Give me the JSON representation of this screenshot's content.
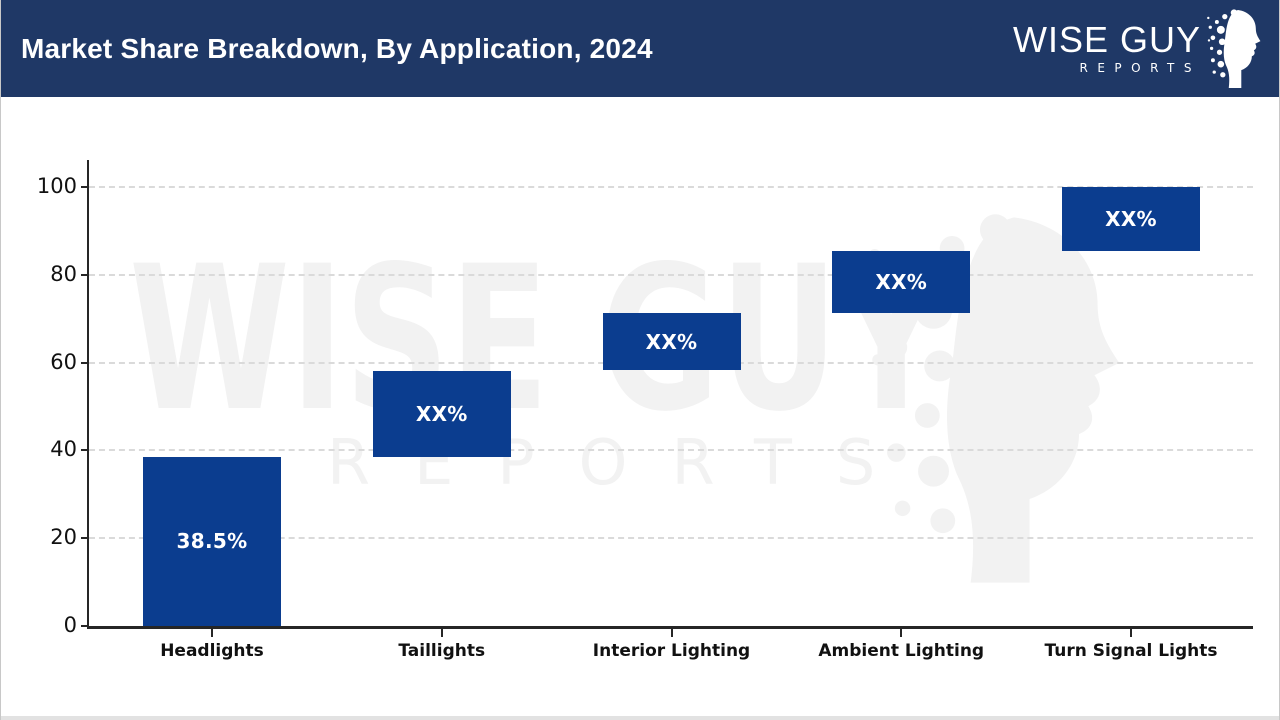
{
  "header": {
    "title": "Market Share Breakdown, By Application, 2024",
    "logo": {
      "line1": "WISE GUY",
      "line2": "REPORTS",
      "icon": "dotted-head-profile-icon"
    }
  },
  "watermark": {
    "line1": "WISE GUY",
    "line2": "REPORTS",
    "icon": "dotted-head-profile-icon"
  },
  "colors": {
    "header_bg": "#1f3866",
    "bar": "#0b3d8f",
    "grid": "#dadada",
    "axis": "#262626",
    "bar_label": "#ffffff",
    "watermark": "#f2f2f2"
  },
  "chart_data": {
    "type": "bar",
    "subtype": "waterfall",
    "title": "Market Share Breakdown, By Application, 2024",
    "categories": [
      "Headlights",
      "Taillights",
      "Interior Lighting",
      "Ambient Lighting",
      "Turn Signal Lights"
    ],
    "series": [
      {
        "name": "Market share (%)",
        "segments": [
          {
            "category": "Headlights",
            "start": 0,
            "end": 38.5,
            "label": "38.5%"
          },
          {
            "category": "Taillights",
            "start": 38.5,
            "end": 58.2,
            "label": "XX%"
          },
          {
            "category": "Interior Lighting",
            "start": 58.2,
            "end": 71.4,
            "label": "XX%"
          },
          {
            "category": "Ambient Lighting",
            "start": 71.4,
            "end": 85.5,
            "label": "XX%"
          },
          {
            "category": "Turn Signal Lights",
            "start": 85.5,
            "end": 100,
            "label": "XX%"
          }
        ]
      }
    ],
    "xlabel": "",
    "ylabel": "",
    "ylim": [
      0,
      100
    ],
    "yticks": [
      0,
      20,
      40,
      60,
      80,
      100
    ],
    "grid": true,
    "grid_style": "dashed",
    "legend": false
  }
}
